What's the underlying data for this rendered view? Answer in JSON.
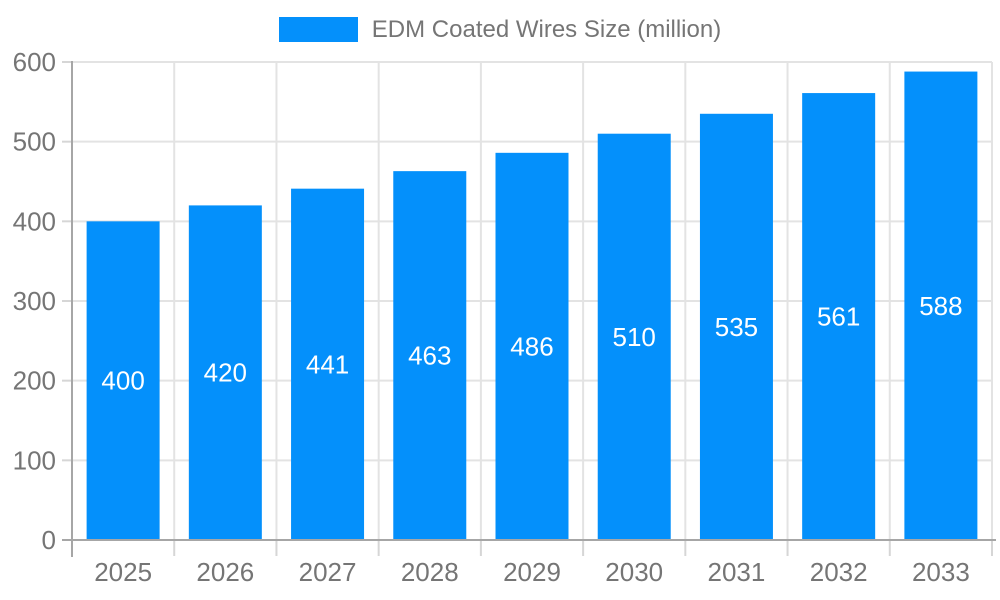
{
  "legend": {
    "label": "EDM Coated Wires Size (million)"
  },
  "chart_data": {
    "type": "bar",
    "title": "EDM Coated Wires Size (million)",
    "categories": [
      "2025",
      "2026",
      "2027",
      "2028",
      "2029",
      "2030",
      "2031",
      "2032",
      "2033"
    ],
    "values": [
      400,
      420,
      441,
      463,
      486,
      510,
      535,
      561,
      588
    ],
    "xlabel": "",
    "ylabel": "",
    "ylim": [
      0,
      600
    ],
    "yticks": [
      0,
      100,
      200,
      300,
      400,
      500,
      600
    ],
    "grid": true,
    "legend_position": "top-center",
    "value_labels_position": "centered-inside-bars"
  },
  "colors": {
    "bar": "#0490fb",
    "grid": "#e3e3e3",
    "axis": "#a6a6a6",
    "tick": "#d6d6d6",
    "text": "#757575",
    "bar_label": "#ffffff",
    "background": "#ffffff"
  }
}
